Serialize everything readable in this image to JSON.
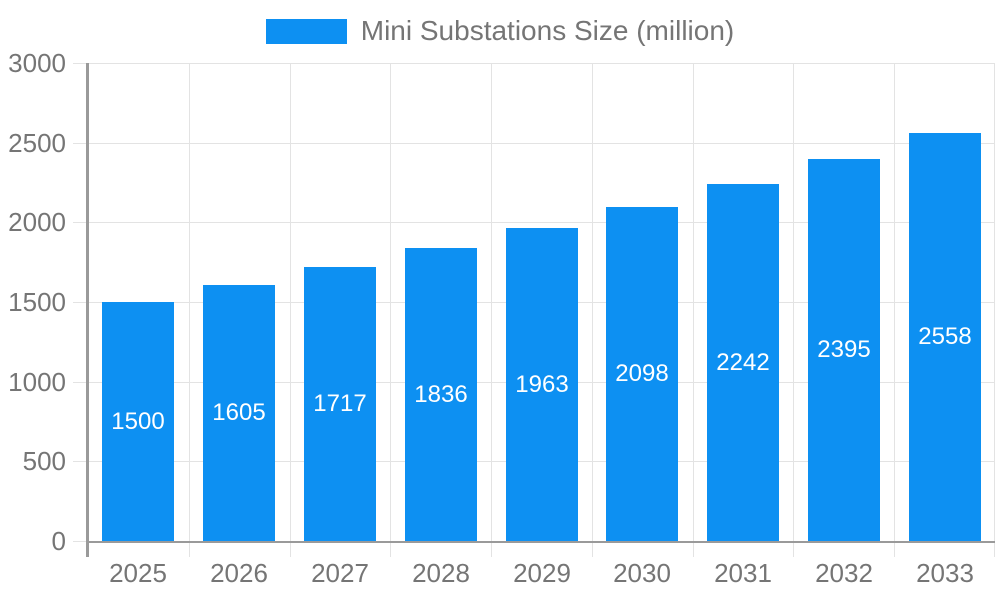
{
  "chart_data": {
    "type": "bar",
    "title": "Mini Substations Size (million)",
    "categories": [
      "2025",
      "2026",
      "2027",
      "2028",
      "2029",
      "2030",
      "2031",
      "2032",
      "2033"
    ],
    "series": [
      {
        "name": "Mini Substations Size (million)",
        "values": [
          1500,
          1605,
          1717,
          1836,
          1963,
          2098,
          2242,
          2395,
          2558
        ],
        "color": "#0d90f2"
      }
    ],
    "value_labels": {
      "show": true,
      "position": "center",
      "color": "#ffffff"
    },
    "xlabel": "",
    "ylabel": "",
    "ylim": [
      0,
      3000
    ],
    "ytick_step": 500,
    "yticks": [
      "0",
      "500",
      "1000",
      "1500",
      "2000",
      "2500",
      "3000"
    ],
    "grid": true,
    "legend_position": "top"
  },
  "style": {
    "background": "#ffffff",
    "bar_color": "#0d90f2",
    "grid_color": "#e3e3e3",
    "axis_color": "#9a9a9a",
    "tick_label_color": "#757575",
    "legend_text_color": "#757575",
    "value_label_color": "#ffffff"
  }
}
